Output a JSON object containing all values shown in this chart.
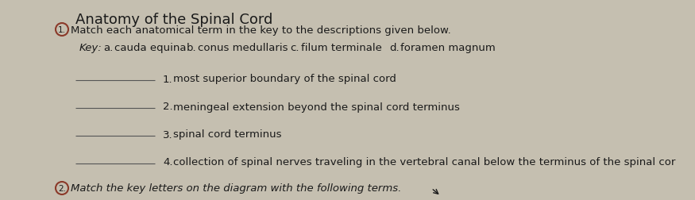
{
  "title": "Anatomy of the Spinal Cord",
  "title_fontsize": 13,
  "background_color": "#c5bfb0",
  "text_color": "#1a1a1a",
  "circle_color": "#8b3a2a",
  "question_text": "Match each anatomical term in the key to the descriptions given below.",
  "key_label": "Key:",
  "key_items": [
    {
      "letter": "a.",
      "term": "cauda equina"
    },
    {
      "letter": "b.",
      "term": "conus medullaris"
    },
    {
      "letter": "c.",
      "term": "filum terminale"
    },
    {
      "letter": "d.",
      "term": "foramen magnum"
    }
  ],
  "items": [
    {
      "number": "1.",
      "text": "most superior boundary of the spinal cord"
    },
    {
      "number": "2.",
      "text": "meningeal extension beyond the spinal cord terminus"
    },
    {
      "number": "3.",
      "text": "spinal cord terminus"
    },
    {
      "number": "4.",
      "text": "collection of spinal nerves traveling in the vertebral canal below the terminus of the spinal cor"
    }
  ],
  "footer_number": "2.",
  "footer_text": "Match the key letters on the diagram with the following terms."
}
